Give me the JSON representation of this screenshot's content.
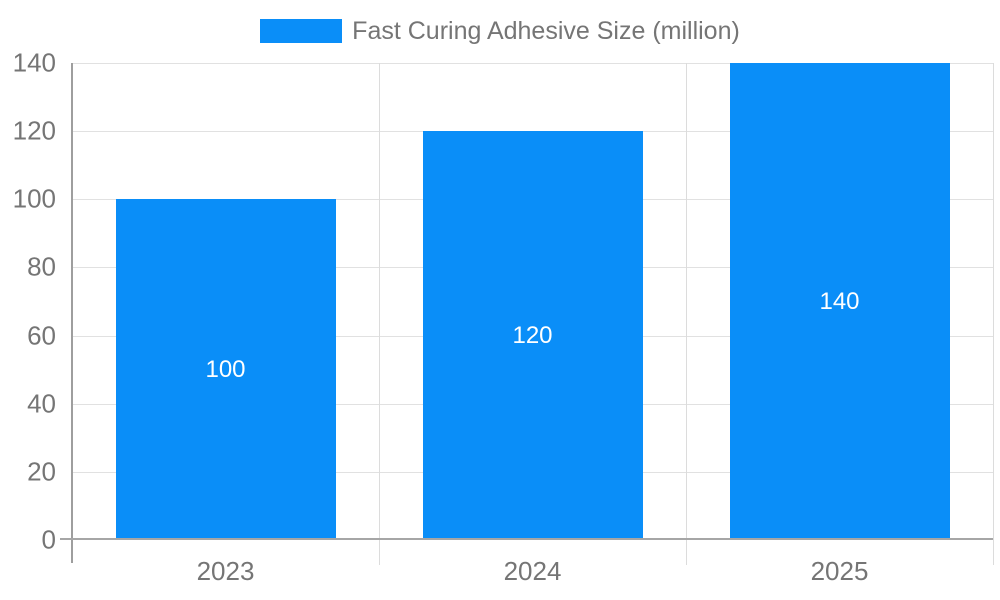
{
  "chart_data": {
    "type": "bar",
    "title": "",
    "legend": "Fast Curing Adhesive Size (million)",
    "legend_position": "top-center",
    "categories": [
      "2023",
      "2024",
      "2025"
    ],
    "series": [
      {
        "name": "Fast Curing Adhesive Size (million)",
        "values": [
          100,
          120,
          140
        ]
      }
    ],
    "bar_labels": [
      "100",
      "120",
      "140"
    ],
    "xlabel": "",
    "ylabel": "",
    "ylim": [
      0,
      140
    ],
    "ytick_step": 20,
    "y_tick_labels": [
      "0",
      "20",
      "40",
      "60",
      "80",
      "100",
      "120",
      "140"
    ],
    "grid": true,
    "colors": {
      "bar": "#0a8ef8",
      "bar_label_text": "#ffffff",
      "axis_text": "#757575",
      "grid_line": "#e1e1e1",
      "axis_line": "#9e9e9e",
      "background": "#ffffff"
    }
  }
}
